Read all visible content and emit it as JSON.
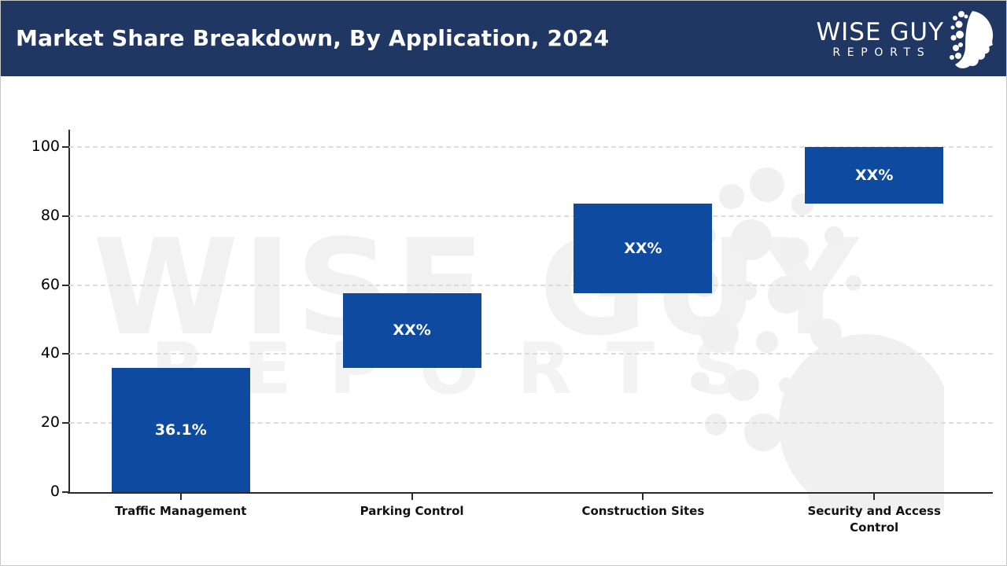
{
  "header": {
    "title": "Market Share Breakdown, By Application, 2024",
    "background_color": "#203663",
    "logo": {
      "line1": "WISE GUY",
      "line2": "REPORTS"
    }
  },
  "watermark": {
    "line1": "WISE GUY",
    "line2": "REPORTS"
  },
  "chart_data": {
    "type": "bar",
    "subtype": "waterfall",
    "title": "Market Share Breakdown, By Application, 2024",
    "xlabel": "",
    "ylabel": "",
    "ylim": [
      0,
      105
    ],
    "yticks": [
      0,
      20,
      40,
      60,
      80,
      100
    ],
    "grid": "horizontal-dashed",
    "legend": "none",
    "bar_color": "#0d4aa0",
    "bar_label_color": "#ffffff",
    "categories": [
      "Traffic Management",
      "Parking Control",
      "Construction Sites",
      "Security and Access Control"
    ],
    "segments": [
      {
        "category": "Traffic Management",
        "start": 0,
        "end": 36.1,
        "value": 36.1,
        "label": "36.1%"
      },
      {
        "category": "Parking Control",
        "start": 36.1,
        "end": 57.7,
        "value": 21.6,
        "label": "XX%"
      },
      {
        "category": "Construction Sites",
        "start": 57.7,
        "end": 83.6,
        "value": 25.9,
        "label": "XX%"
      },
      {
        "category": "Security and Access Control",
        "start": 83.6,
        "end": 100,
        "value": 16.4,
        "label": "XX%"
      }
    ]
  }
}
